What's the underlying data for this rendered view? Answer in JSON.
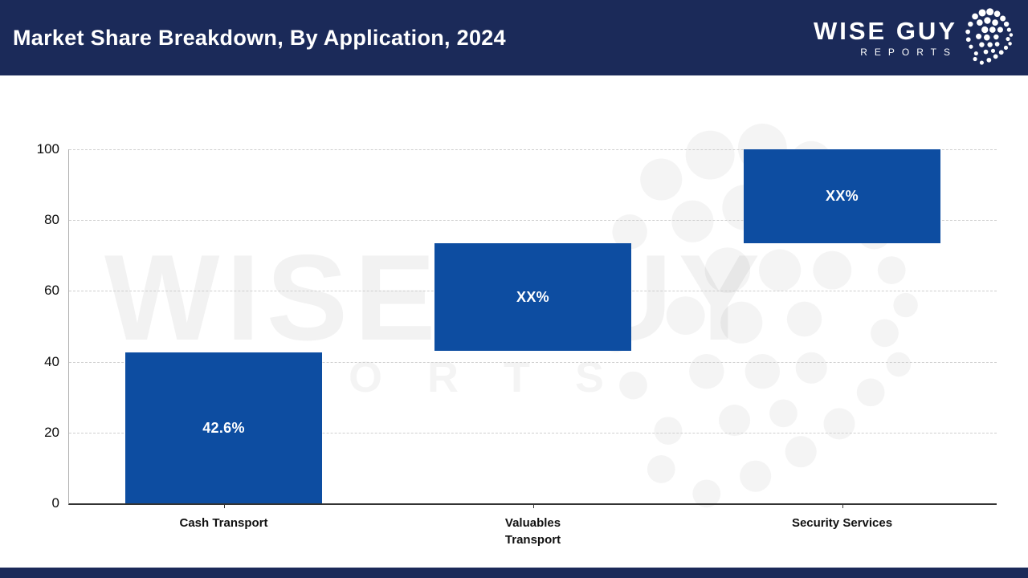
{
  "header": {
    "title": "Market Share Breakdown, By Application, 2024",
    "logo": {
      "line1": "WISE GUY",
      "line2": "REPORTS"
    }
  },
  "watermark": {
    "line1": "WISE GUY",
    "line2": "REPORTS"
  },
  "chart_data": {
    "type": "bar",
    "subtype": "floating-waterfall",
    "title": "Market Share Breakdown, By Application, 2024",
    "categories": [
      "Cash Transport",
      "Valuables Transport",
      "Security Services"
    ],
    "bars": [
      {
        "category": "Cash Transport",
        "tick_label": "Cash Transport",
        "start": 0,
        "end": 42.6,
        "value_label": "42.6%"
      },
      {
        "category": "Valuables Transport",
        "tick_label": "Valuables\nTransport",
        "start": 43,
        "end": 73.5,
        "value_label": "XX%"
      },
      {
        "category": "Security Services",
        "tick_label": "Security Services",
        "start": 73.5,
        "end": 100,
        "value_label": "XX%"
      }
    ],
    "ylim": [
      0,
      100
    ],
    "yticks": [
      0,
      20,
      40,
      60,
      80,
      100
    ],
    "xlabel": "",
    "ylabel": "",
    "grid": "horizontal-dashed",
    "legend": "none",
    "bar_color": "#0d4da1",
    "value_label_color": "#ffffff"
  },
  "colors": {
    "header_bg": "#1b2a59",
    "footer_bg": "#1b2a59",
    "bar": "#0d4da1",
    "grid": "#cfcfcf",
    "axis": "#333333"
  }
}
